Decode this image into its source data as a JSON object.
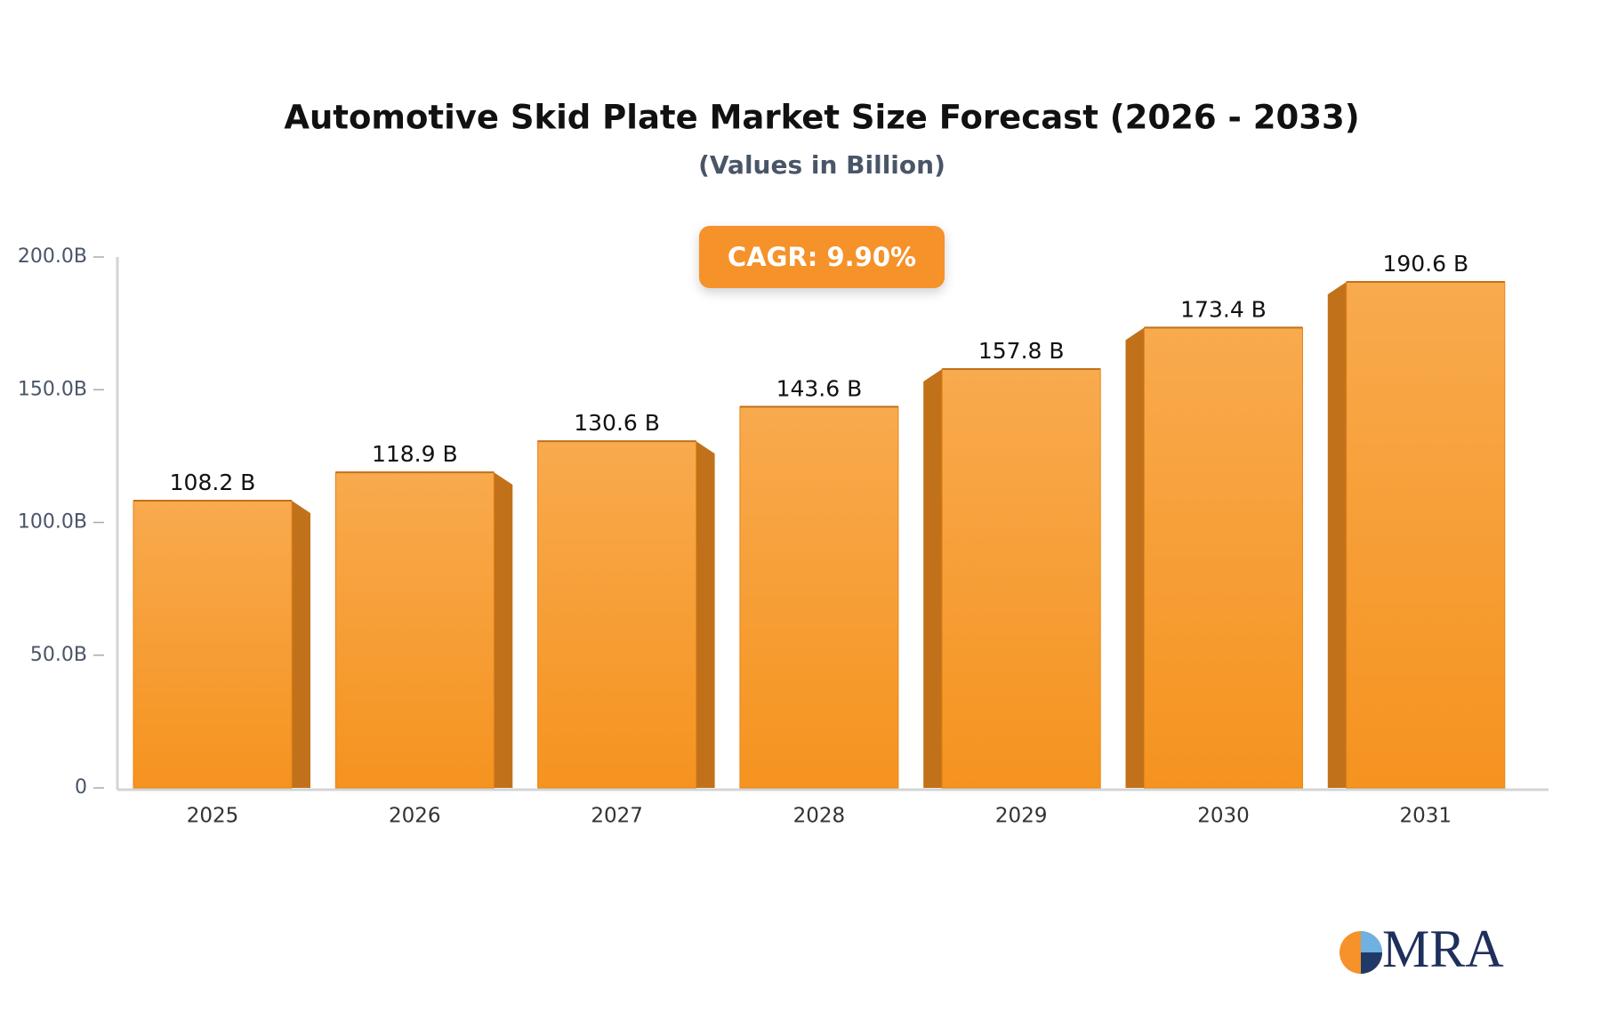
{
  "chart_data": {
    "type": "bar",
    "title": "Automotive Skid Plate Market Size Forecast (2026 - 2033)",
    "subtitle": "(Values in Billion)",
    "annotation": "CAGR: 9.90%",
    "logo": "MRA",
    "categories": [
      "2025",
      "2026",
      "2027",
      "2028",
      "2029",
      "2030",
      "2031"
    ],
    "values": [
      108.2,
      118.9,
      130.6,
      143.6,
      157.8,
      173.4,
      190.6
    ],
    "value_labels": [
      "108.2 B",
      "118.9 B",
      "130.6 B",
      "143.6 B",
      "157.8 B",
      "173.4 B",
      "190.6 B"
    ],
    "color": "#f5982f",
    "ylim": [
      0,
      200
    ],
    "yticks": [
      0,
      {
        "value": 50,
        "label": "50.0B"
      },
      {
        "value": 100,
        "label": "100.0B"
      },
      {
        "value": 150,
        "label": "150.0B"
      },
      {
        "value": 200,
        "label": "200.0B"
      }
    ],
    "grid": false
  }
}
